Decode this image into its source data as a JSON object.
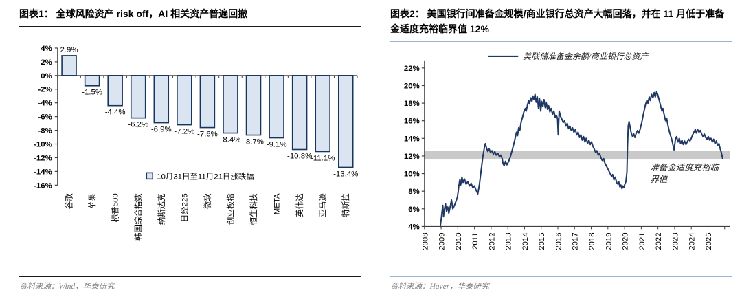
{
  "fig1": {
    "title": "图表1： 全球风险资产 risk off，AI 相关资产普遍回撤",
    "source": "资料来源：Wind，华泰研究"
  },
  "fig2": {
    "title": "图表2： 美国银行间准备金规模/商业银行总资产大幅回落，并在 11 月低于准备金适度充裕临界值 12%",
    "source": "资料来源：Haver，华泰研究"
  },
  "colors": {
    "navy_line": "#1f3864",
    "bar_fill": "#dbe5f1",
    "bar_stroke": "#17365d",
    "band_gray": "#c9c9c9",
    "axis": "#404040",
    "text": "#000000",
    "annotation_text": "#1f1f1f"
  },
  "chart_data": [
    {
      "type": "bar",
      "title": "全球风险资产 risk off，AI 相关资产普遍回撤",
      "legend": "10月31日至11月21日涨跌幅",
      "categories": [
        "谷歌",
        "苹果",
        "标普500",
        "韩国综合指数",
        "纳斯达克",
        "日经225",
        "微软",
        "创业板指",
        "恒生科技",
        "META",
        "英伟达",
        "亚马逊",
        "特斯拉"
      ],
      "values": [
        2.9,
        -1.5,
        -4.4,
        -6.2,
        -6.9,
        -7.2,
        -7.6,
        -8.4,
        -8.7,
        -9.1,
        -10.8,
        -11.1,
        -13.4
      ],
      "value_label_format": "percent_1dp",
      "ylim": [
        -16,
        4
      ],
      "ytick_step": 2,
      "grid": false,
      "legend_position": "inside-bottom"
    },
    {
      "type": "line",
      "title": "美国银行间准备金规模/商业银行总资产大幅回落",
      "legend": "美联储准备金余额/商业银行总资产",
      "xlabel": "",
      "ylabel": "",
      "ylim": [
        4,
        22
      ],
      "ytick_step": 2,
      "xlim": [
        2008,
        2026.3
      ],
      "xticks": [
        2008,
        2009,
        2010,
        2011,
        2012,
        2013,
        2014,
        2015,
        2016,
        2017,
        2018,
        2019,
        2020,
        2021,
        2022,
        2023,
        2024,
        2025
      ],
      "grid": false,
      "legend_position": "top-center",
      "band": {
        "from": 11.6,
        "to": 12.6,
        "nominal": 12,
        "label": "准备金适度充裕临界值",
        "label_lines": [
          "准备金适度充裕临",
          "界值"
        ]
      },
      "series": [
        {
          "name": "美联储准备金余额/商业银行总资产",
          "points": [
            [
              2008.95,
              4.0
            ],
            [
              2009.0,
              4.8
            ],
            [
              2009.05,
              5.6
            ],
            [
              2009.1,
              6.4
            ],
            [
              2009.14,
              5.1
            ],
            [
              2009.2,
              5.9
            ],
            [
              2009.26,
              6.6
            ],
            [
              2009.32,
              5.7
            ],
            [
              2009.4,
              6.2
            ],
            [
              2009.46,
              5.5
            ],
            [
              2009.55,
              6.3
            ],
            [
              2009.62,
              7.0
            ],
            [
              2009.7,
              6.0
            ],
            [
              2009.8,
              6.4
            ],
            [
              2009.9,
              6.9
            ],
            [
              2009.97,
              7.3
            ],
            [
              2010.02,
              7.9
            ],
            [
              2010.07,
              8.7
            ],
            [
              2010.12,
              9.3
            ],
            [
              2010.17,
              8.7
            ],
            [
              2010.25,
              9.6
            ],
            [
              2010.32,
              9.0
            ],
            [
              2010.4,
              9.4
            ],
            [
              2010.5,
              8.8
            ],
            [
              2010.6,
              9.1
            ],
            [
              2010.7,
              8.6
            ],
            [
              2010.8,
              8.9
            ],
            [
              2010.9,
              8.4
            ],
            [
              2011.0,
              8.6
            ],
            [
              2011.1,
              8.1
            ],
            [
              2011.2,
              7.7
            ],
            [
              2011.3,
              8.8
            ],
            [
              2011.4,
              10.4
            ],
            [
              2011.5,
              11.9
            ],
            [
              2011.6,
              13.0
            ],
            [
              2011.65,
              13.4
            ],
            [
              2011.72,
              12.9
            ],
            [
              2011.8,
              12.5
            ],
            [
              2011.88,
              12.8
            ],
            [
              2011.96,
              12.4
            ],
            [
              2012.05,
              12.6
            ],
            [
              2012.13,
              12.2
            ],
            [
              2012.22,
              12.5
            ],
            [
              2012.3,
              12.1
            ],
            [
              2012.4,
              12.3
            ],
            [
              2012.5,
              11.9
            ],
            [
              2012.58,
              12.1
            ],
            [
              2012.66,
              11.7
            ],
            [
              2012.72,
              11.1
            ],
            [
              2012.78,
              10.9
            ],
            [
              2012.86,
              11.4
            ],
            [
              2012.95,
              11.0
            ],
            [
              2013.05,
              11.4
            ],
            [
              2013.15,
              11.9
            ],
            [
              2013.25,
              12.6
            ],
            [
              2013.35,
              13.3
            ],
            [
              2013.45,
              14.1
            ],
            [
              2013.52,
              14.7
            ],
            [
              2013.58,
              14.3
            ],
            [
              2013.65,
              15.2
            ],
            [
              2013.72,
              14.9
            ],
            [
              2013.8,
              15.9
            ],
            [
              2013.88,
              16.4
            ],
            [
              2013.96,
              17.0
            ],
            [
              2014.05,
              17.4
            ],
            [
              2014.1,
              17.1
            ],
            [
              2014.18,
              17.8
            ],
            [
              2014.25,
              18.3
            ],
            [
              2014.3,
              17.9
            ],
            [
              2014.38,
              18.6
            ],
            [
              2014.44,
              18.2
            ],
            [
              2014.5,
              18.8
            ],
            [
              2014.56,
              18.4
            ],
            [
              2014.63,
              19.0
            ],
            [
              2014.7,
              18.1
            ],
            [
              2014.77,
              18.7
            ],
            [
              2014.84,
              17.4
            ],
            [
              2014.9,
              18.5
            ],
            [
              2014.97,
              17.1
            ],
            [
              2015.03,
              18.2
            ],
            [
              2015.1,
              17.6
            ],
            [
              2015.17,
              18.4
            ],
            [
              2015.24,
              17.5
            ],
            [
              2015.3,
              18.1
            ],
            [
              2015.38,
              17.3
            ],
            [
              2015.45,
              17.7
            ],
            [
              2015.52,
              17.0
            ],
            [
              2015.6,
              17.4
            ],
            [
              2015.68,
              16.7
            ],
            [
              2015.76,
              17.1
            ],
            [
              2015.84,
              16.4
            ],
            [
              2015.92,
              16.6
            ],
            [
              2015.98,
              16.2
            ],
            [
              2016.02,
              14.4
            ],
            [
              2016.08,
              17.1
            ],
            [
              2016.16,
              16.5
            ],
            [
              2016.24,
              16.2
            ],
            [
              2016.32,
              15.8
            ],
            [
              2016.4,
              16.0
            ],
            [
              2016.48,
              15.4
            ],
            [
              2016.56,
              15.7
            ],
            [
              2016.64,
              15.1
            ],
            [
              2016.72,
              15.4
            ],
            [
              2016.8,
              14.9
            ],
            [
              2016.88,
              15.2
            ],
            [
              2016.96,
              14.7
            ],
            [
              2017.05,
              15.0
            ],
            [
              2017.13,
              14.4
            ],
            [
              2017.21,
              14.7
            ],
            [
              2017.3,
              14.1
            ],
            [
              2017.38,
              14.4
            ],
            [
              2017.46,
              13.8
            ],
            [
              2017.54,
              14.2
            ],
            [
              2017.62,
              13.6
            ],
            [
              2017.7,
              14.0
            ],
            [
              2017.78,
              13.4
            ],
            [
              2017.86,
              13.8
            ],
            [
              2017.94,
              13.3
            ],
            [
              2018.02,
              13.6
            ],
            [
              2018.1,
              13.1
            ],
            [
              2018.18,
              12.8
            ],
            [
              2018.26,
              12.4
            ],
            [
              2018.34,
              12.6
            ],
            [
              2018.42,
              12.1
            ],
            [
              2018.5,
              12.3
            ],
            [
              2018.58,
              11.8
            ],
            [
              2018.66,
              11.5
            ],
            [
              2018.74,
              11.7
            ],
            [
              2018.82,
              11.2
            ],
            [
              2018.9,
              10.9
            ],
            [
              2018.98,
              10.6
            ],
            [
              2019.06,
              10.3
            ],
            [
              2019.14,
              10.0
            ],
            [
              2019.22,
              9.7
            ],
            [
              2019.28,
              9.9
            ],
            [
              2019.36,
              9.3
            ],
            [
              2019.44,
              9.6
            ],
            [
              2019.52,
              9.0
            ],
            [
              2019.6,
              8.8
            ],
            [
              2019.65,
              9.1
            ],
            [
              2019.72,
              8.5
            ],
            [
              2019.78,
              8.7
            ],
            [
              2019.84,
              8.3
            ],
            [
              2019.9,
              8.6
            ],
            [
              2019.96,
              8.4
            ],
            [
              2020.02,
              8.8
            ],
            [
              2020.08,
              9.1
            ],
            [
              2020.14,
              10.2
            ],
            [
              2020.18,
              13.2
            ],
            [
              2020.22,
              15.4
            ],
            [
              2020.27,
              15.9
            ],
            [
              2020.33,
              15.3
            ],
            [
              2020.4,
              14.6
            ],
            [
              2020.48,
              14.2
            ],
            [
              2020.55,
              14.5
            ],
            [
              2020.62,
              14.1
            ],
            [
              2020.7,
              14.6
            ],
            [
              2020.78,
              14.9
            ],
            [
              2020.86,
              14.6
            ],
            [
              2020.94,
              15.1
            ],
            [
              2021.02,
              15.7
            ],
            [
              2021.1,
              16.5
            ],
            [
              2021.18,
              17.2
            ],
            [
              2021.26,
              17.9
            ],
            [
              2021.34,
              18.3
            ],
            [
              2021.4,
              18.0
            ],
            [
              2021.48,
              18.7
            ],
            [
              2021.54,
              18.3
            ],
            [
              2021.62,
              19.0
            ],
            [
              2021.7,
              18.6
            ],
            [
              2021.78,
              19.2
            ],
            [
              2021.84,
              18.7
            ],
            [
              2021.92,
              19.3
            ],
            [
              2022.0,
              18.9
            ],
            [
              2022.08,
              18.3
            ],
            [
              2022.16,
              17.7
            ],
            [
              2022.24,
              17.1
            ],
            [
              2022.3,
              17.4
            ],
            [
              2022.38,
              16.6
            ],
            [
              2022.46,
              16.0
            ],
            [
              2022.52,
              16.3
            ],
            [
              2022.6,
              15.5
            ],
            [
              2022.68,
              14.8
            ],
            [
              2022.76,
              14.3
            ],
            [
              2022.84,
              13.8
            ],
            [
              2022.92,
              13.1
            ],
            [
              2022.97,
              12.7
            ],
            [
              2023.05,
              13.9
            ],
            [
              2023.12,
              14.2
            ],
            [
              2023.2,
              13.6
            ],
            [
              2023.28,
              14.0
            ],
            [
              2023.36,
              13.4
            ],
            [
              2023.44,
              13.8
            ],
            [
              2023.52,
              13.3
            ],
            [
              2023.6,
              13.7
            ],
            [
              2023.68,
              13.3
            ],
            [
              2023.76,
              13.6
            ],
            [
              2023.84,
              13.9
            ],
            [
              2023.92,
              13.7
            ],
            [
              2024.0,
              14.0
            ],
            [
              2024.08,
              14.4
            ],
            [
              2024.16,
              14.7
            ],
            [
              2024.24,
              15.0
            ],
            [
              2024.3,
              14.6
            ],
            [
              2024.38,
              15.0
            ],
            [
              2024.46,
              14.7
            ],
            [
              2024.54,
              14.9
            ],
            [
              2024.62,
              14.5
            ],
            [
              2024.7,
              14.2
            ],
            [
              2024.78,
              14.5
            ],
            [
              2024.86,
              14.1
            ],
            [
              2024.94,
              13.9
            ],
            [
              2025.02,
              14.2
            ],
            [
              2025.1,
              13.8
            ],
            [
              2025.18,
              14.0
            ],
            [
              2025.26,
              13.6
            ],
            [
              2025.34,
              13.9
            ],
            [
              2025.42,
              13.4
            ],
            [
              2025.5,
              13.7
            ],
            [
              2025.58,
              13.2
            ],
            [
              2025.66,
              13.4
            ],
            [
              2025.72,
              12.9
            ],
            [
              2025.8,
              12.4
            ],
            [
              2025.88,
              11.7
            ]
          ]
        }
      ]
    }
  ]
}
